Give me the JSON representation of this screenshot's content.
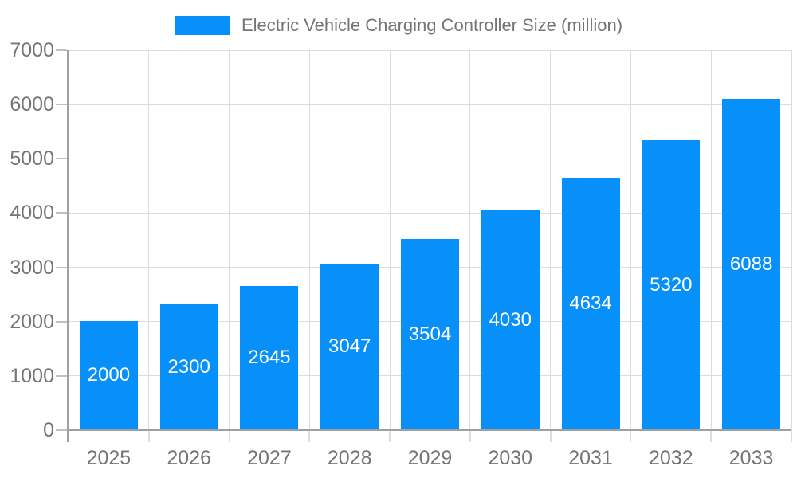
{
  "chart_data": {
    "type": "bar",
    "title": "Electric Vehicle Charging Controller Size (million)",
    "legend": {
      "position": "top",
      "entries": [
        "Electric Vehicle Charging Controller Size (million)"
      ]
    },
    "categories": [
      "2025",
      "2026",
      "2027",
      "2028",
      "2029",
      "2030",
      "2031",
      "2032",
      "2033"
    ],
    "values": [
      2000,
      2300,
      2645,
      3047,
      3504,
      4030,
      4634,
      5320,
      6088
    ],
    "xlabel": "",
    "ylabel": "",
    "ylim": [
      0,
      7000
    ],
    "yticks": [
      0,
      1000,
      2000,
      3000,
      4000,
      5000,
      6000,
      7000
    ],
    "grid": "on",
    "bar_label_position": "inside-center",
    "colors": {
      "bar": "#0890fa",
      "bar_label": "#ffffff",
      "axis_text": "#757575",
      "grid_line": "#dcdcdc",
      "axis_line": "#a0a0a0"
    }
  }
}
